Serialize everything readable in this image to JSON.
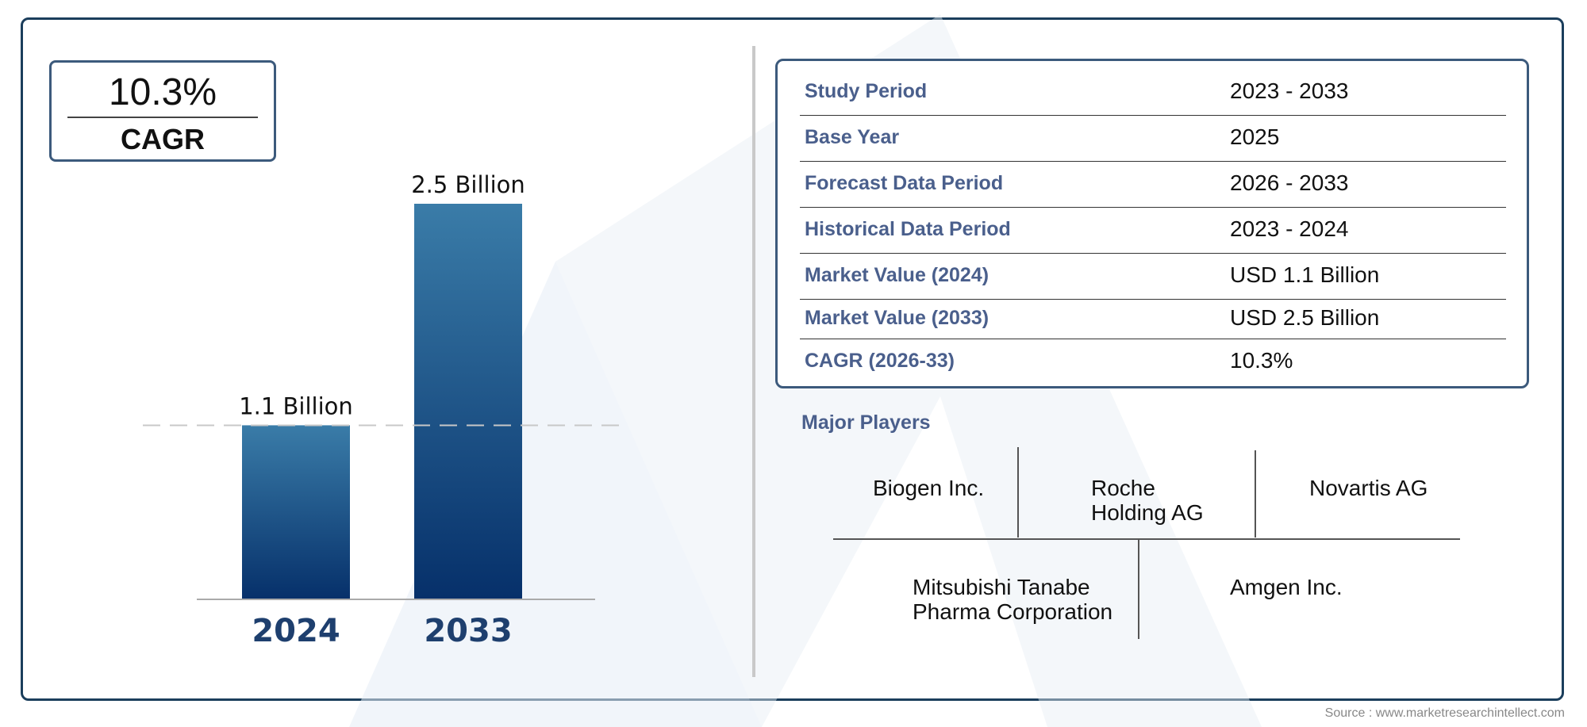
{
  "cagr_box": {
    "value": "10.3%",
    "label": "CAGR"
  },
  "chart_data": {
    "type": "bar",
    "categories": [
      "2024",
      "2033"
    ],
    "values": [
      1.1,
      2.5
    ],
    "data_labels": [
      "1.1 Billion",
      "2.5 Billion"
    ],
    "title": "",
    "xlabel": "",
    "ylabel": "",
    "ylim": [
      0,
      2.5
    ],
    "grid": false,
    "reference_line": 1.1,
    "colors": {
      "bar_top": "#3a7ca8",
      "bar_bottom": "#06306a",
      "category_label": "#1e3f6e"
    }
  },
  "info_table": [
    {
      "label": "Study Period",
      "value": "2023 - 2033"
    },
    {
      "label": "Base Year",
      "value": "2025"
    },
    {
      "label": "Forecast Data Period",
      "value": "2026 - 2033"
    },
    {
      "label": "Historical Data Period",
      "value": "2023 - 2024"
    },
    {
      "label": "Market Value (2024)",
      "value": "USD 1.1 Billion"
    },
    {
      "label": "Market Value (2033)",
      "value": "USD 2.5 Billion"
    },
    {
      "label": "CAGR (2026-33)",
      "value": "10.3%"
    }
  ],
  "major_players": {
    "title": "Major Players",
    "row1": [
      "Biogen Inc.",
      "Roche\nHolding AG",
      "Novartis AG"
    ],
    "row2": [
      "Mitsubishi Tanabe\nPharma Corporation",
      "Amgen Inc."
    ]
  },
  "source": "Source : www.marketresearchintellect.com"
}
